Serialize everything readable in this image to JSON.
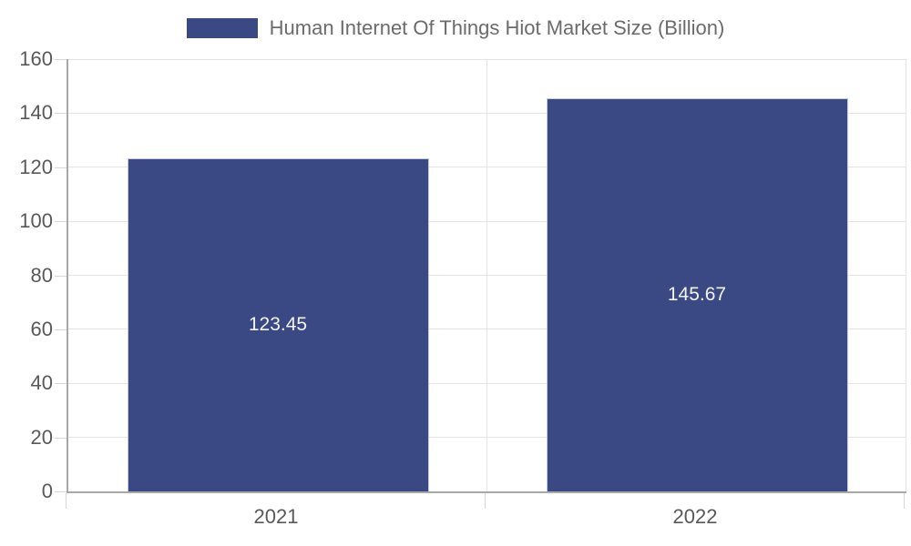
{
  "chart_data": {
    "type": "bar",
    "title": "Human Internet Of Things Hiot Market Size (Billion)",
    "categories": [
      "2021",
      "2022"
    ],
    "values": [
      123.45,
      145.67
    ],
    "value_labels": [
      "123.45",
      "145.67"
    ],
    "yticks": [
      "0",
      "20",
      "40",
      "60",
      "80",
      "100",
      "120",
      "140",
      "160"
    ],
    "ytick_values": [
      0,
      20,
      40,
      60,
      80,
      100,
      120,
      140,
      160
    ],
    "ylim": [
      0,
      160
    ],
    "xlabel": "",
    "ylabel": "",
    "grid": true,
    "legend_position": "top-center",
    "colors": {
      "bar": "#3a4984",
      "bar_border": "#c5cadf",
      "value_label": "#f2f2f2",
      "grid": "#e5e5e5",
      "axis": "#a8a8a8",
      "tick": "#d7d7d7",
      "tick_label": "#595959",
      "legend_text": "#6b6b6b",
      "background": "#ffffff"
    }
  }
}
